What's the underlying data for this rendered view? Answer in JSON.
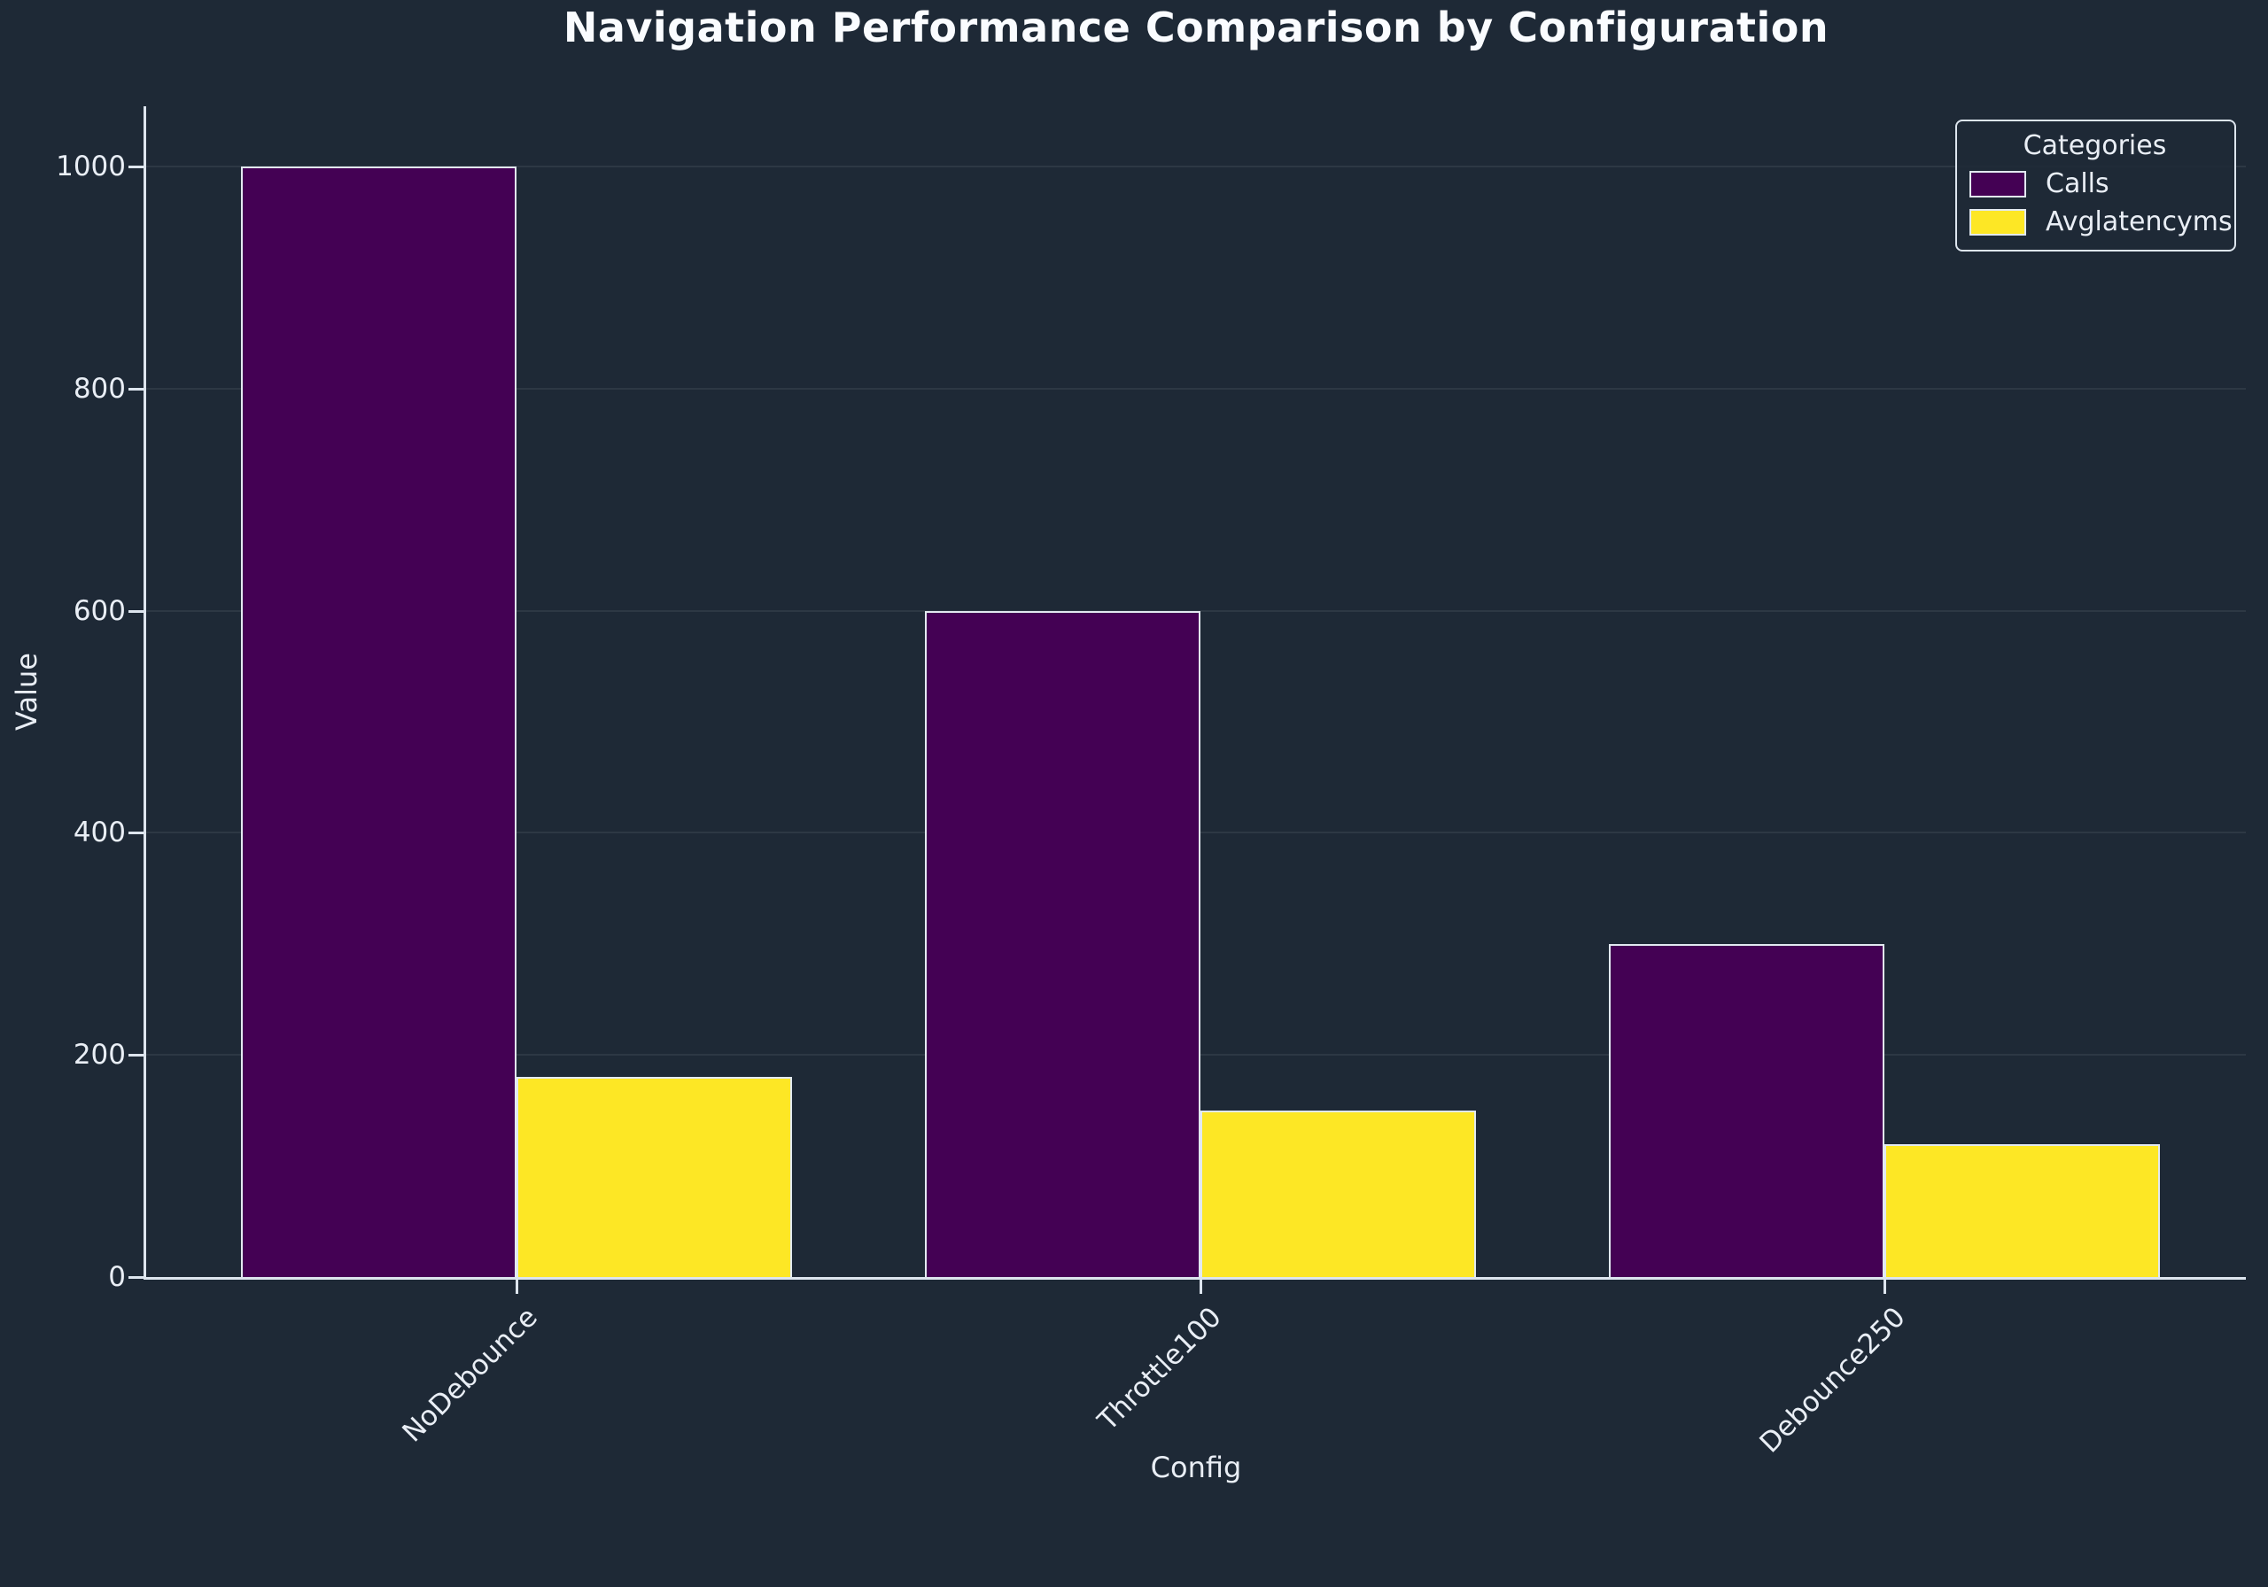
{
  "title": "Navigation Performance Comparison by Configuration",
  "axes": {
    "x_label": "Config",
    "y_label": "Value"
  },
  "legend": {
    "title": "Categories",
    "items": [
      {
        "label": "Calls",
        "color": "#440154"
      },
      {
        "label": "Avglatencyms",
        "color": "#fde725"
      }
    ]
  },
  "colors": {
    "background": "#1e2936",
    "text": "#e9eef5",
    "axis": "#dde5ee",
    "calls_purple": "#440154",
    "latency_yellow": "#fde725"
  },
  "chart_data": {
    "type": "bar",
    "title": "Navigation Performance Comparison by Configuration",
    "xlabel": "Config",
    "ylabel": "Value",
    "categories": [
      "NoDebounce",
      "Throttle100",
      "Debounce250"
    ],
    "series": [
      {
        "name": "Calls",
        "color": "#440154",
        "values": [
          1000,
          600,
          300
        ]
      },
      {
        "name": "Avglatencyms",
        "color": "#fde725",
        "values": [
          180,
          150,
          120
        ]
      }
    ],
    "ylim": [
      0,
      1053
    ],
    "yticks": [
      0,
      200,
      400,
      600,
      800,
      1000
    ],
    "grid": "horizontal",
    "legend_position": "upper right",
    "bar_edge_color": "#e2e9f0",
    "background": "dark"
  }
}
